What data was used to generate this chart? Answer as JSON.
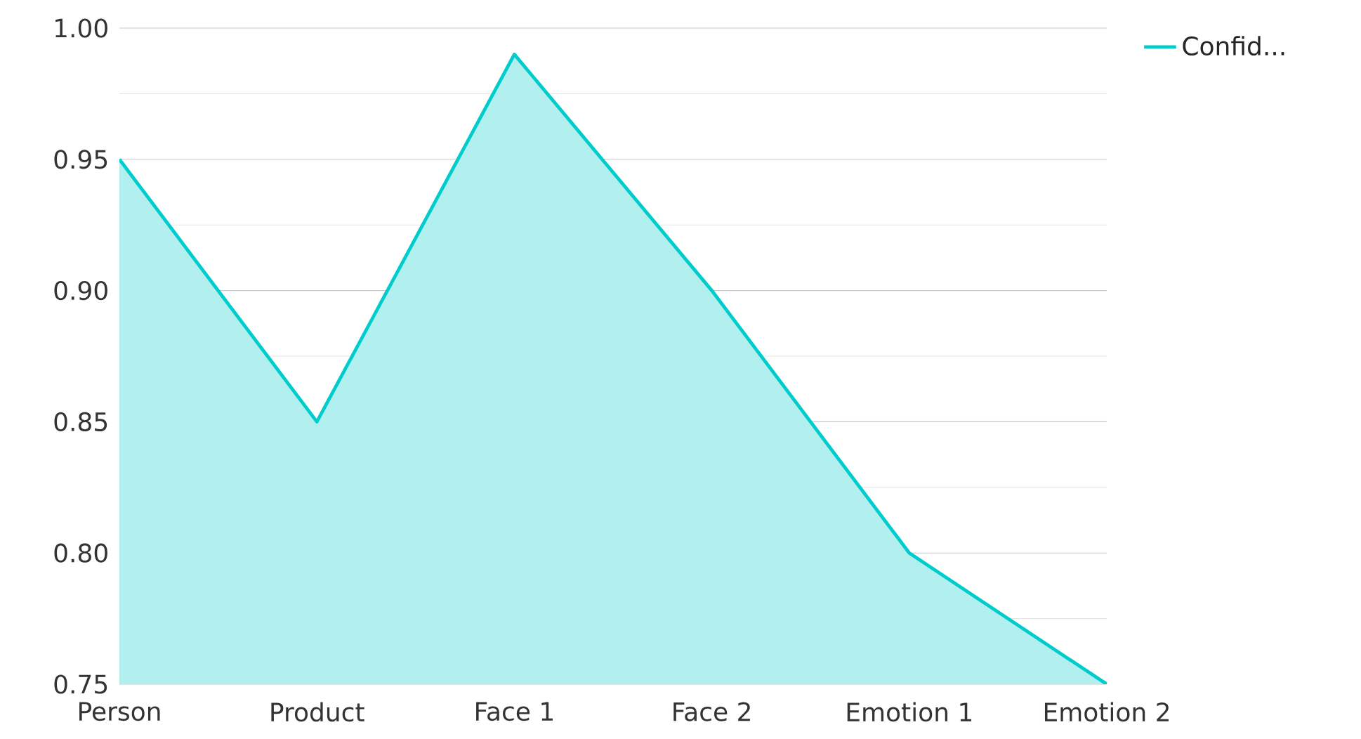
{
  "chart_data": {
    "type": "area",
    "categories": [
      "Person",
      "Product",
      "Face 1",
      "Face 2",
      "Emotion 1",
      "Emotion 2"
    ],
    "series": [
      {
        "name": "Confid...",
        "color": "#00cccc",
        "values": [
          0.95,
          0.85,
          0.99,
          0.9,
          0.8,
          0.75
        ]
      }
    ],
    "ylim": [
      0.75,
      1.0
    ],
    "yticks": [
      0.75,
      {
        "value": 0.8,
        "label": "0.80"
      },
      0.85,
      {
        "value": 0.9,
        "label": "0.90"
      },
      0.95,
      {
        "value": 1.0,
        "label": "1.00"
      }
    ],
    "grid": "y",
    "legend": "top right"
  }
}
